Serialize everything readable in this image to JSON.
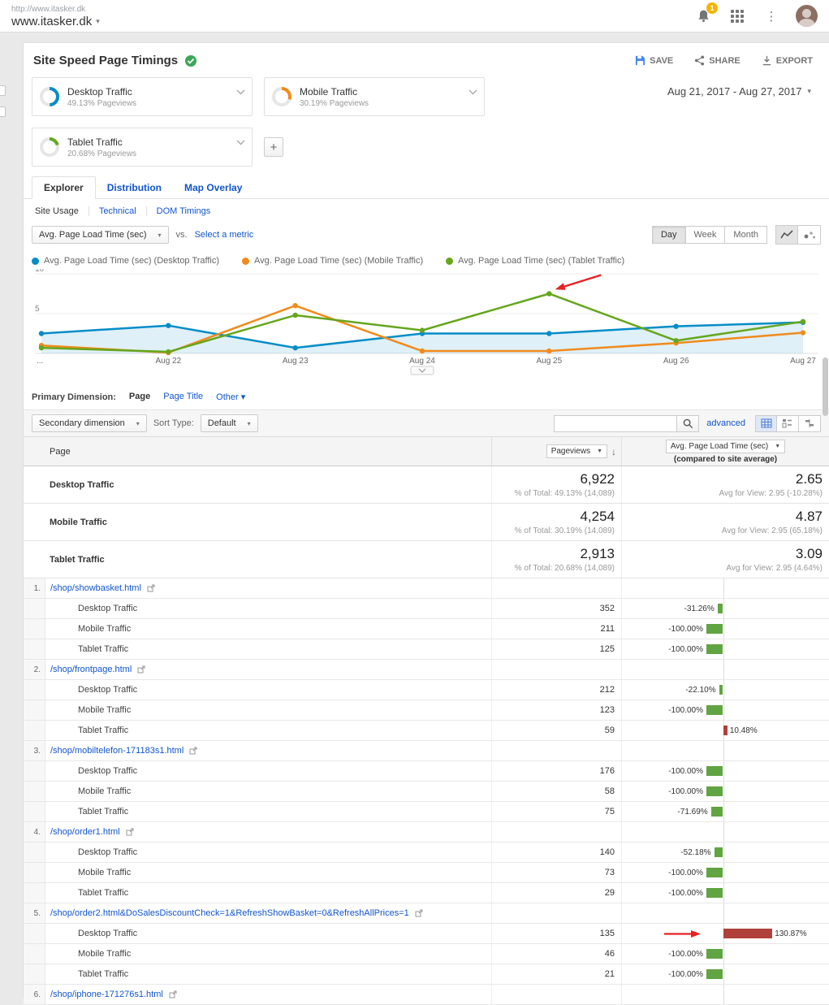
{
  "topbar": {
    "url": "http://www.itasker.dk",
    "account_name": "www.itasker.dk",
    "notification_count": "1"
  },
  "report": {
    "title": "Site Speed Page Timings",
    "save_label": "SAVE",
    "share_label": "SHARE",
    "export_label": "EXPORT",
    "date_range": "Aug 21, 2017 - Aug 27, 2017"
  },
  "segments": {
    "cards": [
      {
        "name": "Desktop Traffic",
        "subtitle": "49.13% Pageviews",
        "pct": 49.13,
        "color": "#058dc7"
      },
      {
        "name": "Mobile Traffic",
        "subtitle": "30.19% Pageviews",
        "pct": 30.19,
        "color": "#f08b1d"
      },
      {
        "name": "Tablet Traffic",
        "subtitle": "20.68% Pageviews",
        "pct": 20.68,
        "color": "#65a61d"
      }
    ],
    "add_label": "+"
  },
  "tabs": {
    "items": [
      {
        "label": "Explorer",
        "active": true
      },
      {
        "label": "Distribution",
        "active": false
      },
      {
        "label": "Map Overlay",
        "active": false
      }
    ],
    "subitems": [
      {
        "label": "Site Usage",
        "active": true
      },
      {
        "label": "Technical",
        "active": false
      },
      {
        "label": "DOM Timings",
        "active": false
      }
    ]
  },
  "metric_bar": {
    "metric_selector": "Avg. Page Load Time (sec)",
    "vs_label": "vs.",
    "select_metric": "Select a metric",
    "granularity": [
      {
        "label": "Day",
        "active": true
      },
      {
        "label": "Week",
        "active": false
      },
      {
        "label": "Month",
        "active": false
      }
    ]
  },
  "chart_data": {
    "type": "line",
    "x": [
      "...",
      "Aug 22",
      "Aug 23",
      "Aug 24",
      "Aug 25",
      "Aug 26",
      "Aug 27"
    ],
    "ylabel": "Avg. Page Load Time (sec)",
    "ylim": [
      0,
      10
    ],
    "yticks": [
      5,
      10
    ],
    "grid": true,
    "legend_position": "top",
    "series": [
      {
        "name": "Avg. Page Load Time (sec) (Desktop Traffic)",
        "color": "#058dc7",
        "area": true,
        "values": [
          2.5,
          3.5,
          0.7,
          2.5,
          2.5,
          3.4,
          3.9
        ]
      },
      {
        "name": "Avg. Page Load Time (sec) (Mobile Traffic)",
        "color": "#f08b1d",
        "area": false,
        "values": [
          1.0,
          0.1,
          6.0,
          0.3,
          0.3,
          1.3,
          2.6
        ]
      },
      {
        "name": "Avg. Page Load Time (sec) (Tablet Traffic)",
        "color": "#65a61d",
        "area": false,
        "values": [
          0.7,
          0.2,
          4.8,
          2.9,
          7.5,
          1.6,
          4.0
        ]
      }
    ],
    "annotation": "red arrow pointing at Tablet Traffic peak on Aug 25"
  },
  "dimension_bar": {
    "label": "Primary Dimension:",
    "options": [
      {
        "label": "Page",
        "active": true,
        "caret": false
      },
      {
        "label": "Page Title",
        "active": false,
        "caret": false
      },
      {
        "label": "Other",
        "active": false,
        "caret": true
      }
    ]
  },
  "toolbar": {
    "secondary_dimension": "Secondary dimension",
    "sort_type_label": "Sort Type:",
    "sort_type_value": "Default",
    "advanced_label": "advanced"
  },
  "table": {
    "headers": {
      "page": "Page",
      "pageviews": "Pageviews",
      "metric": "Avg. Page Load Time (sec)",
      "metric_sub": "(compared to site average)"
    },
    "bar_colors": {
      "negative": "#61a442",
      "positive": "#b0413a"
    },
    "summary_rows": [
      {
        "name": "Desktop Traffic",
        "pageviews": "6,922",
        "pageviews_sub": "% of Total: 49.13% (14,089)",
        "value": "2.65",
        "value_sub": "Avg for View: 2.95 (-10.28%)"
      },
      {
        "name": "Mobile Traffic",
        "pageviews": "4,254",
        "pageviews_sub": "% of Total: 30.19% (14,089)",
        "value": "4.87",
        "value_sub": "Avg for View: 2.95 (65.18%)"
      },
      {
        "name": "Tablet Traffic",
        "pageviews": "2,913",
        "pageviews_sub": "% of Total: 20.68% (14,089)",
        "value": "3.09",
        "value_sub": "Avg for View: 2.95 (4.64%)"
      }
    ],
    "rows": [
      {
        "num": "1.",
        "url": "/shop/showbasket.html",
        "subs": [
          {
            "name": "Desktop Traffic",
            "pageviews": "352",
            "pct": -31.26,
            "pct_label": "-31.26%"
          },
          {
            "name": "Mobile Traffic",
            "pageviews": "211",
            "pct": -100,
            "pct_label": "-100.00%"
          },
          {
            "name": "Tablet Traffic",
            "pageviews": "125",
            "pct": -100,
            "pct_label": "-100.00%"
          }
        ]
      },
      {
        "num": "2.",
        "url": "/shop/frontpage.html",
        "subs": [
          {
            "name": "Desktop Traffic",
            "pageviews": "212",
            "pct": -22.1,
            "pct_label": "-22.10%"
          },
          {
            "name": "Mobile Traffic",
            "pageviews": "123",
            "pct": -100,
            "pct_label": "-100.00%"
          },
          {
            "name": "Tablet Traffic",
            "pageviews": "59",
            "pct": 10.48,
            "pct_label": "10.48%"
          }
        ]
      },
      {
        "num": "3.",
        "url": "/shop/mobiltelefon-171183s1.html",
        "subs": [
          {
            "name": "Desktop Traffic",
            "pageviews": "176",
            "pct": -100,
            "pct_label": "-100.00%"
          },
          {
            "name": "Mobile Traffic",
            "pageviews": "58",
            "pct": -100,
            "pct_label": "-100.00%"
          },
          {
            "name": "Tablet Traffic",
            "pageviews": "75",
            "pct": -71.69,
            "pct_label": "-71.69%"
          }
        ]
      },
      {
        "num": "4.",
        "url": "/shop/order1.html",
        "subs": [
          {
            "name": "Desktop Traffic",
            "pageviews": "140",
            "pct": -52.18,
            "pct_label": "-52.18%"
          },
          {
            "name": "Mobile Traffic",
            "pageviews": "73",
            "pct": -100,
            "pct_label": "-100.00%"
          },
          {
            "name": "Tablet Traffic",
            "pageviews": "29",
            "pct": -100,
            "pct_label": "-100.00%"
          }
        ]
      },
      {
        "num": "5.",
        "url": "/shop/order2.html&DoSalesDiscountCheck=1&RefreshShowBasket=0&RefreshAllPrices=1",
        "subs": [
          {
            "name": "Desktop Traffic",
            "pageviews": "135",
            "pct": 130.87,
            "pct_label": "130.87%",
            "arrow": true
          },
          {
            "name": "Mobile Traffic",
            "pageviews": "46",
            "pct": -100,
            "pct_label": "-100.00%"
          },
          {
            "name": "Tablet Traffic",
            "pageviews": "21",
            "pct": -100,
            "pct_label": "-100.00%"
          }
        ]
      },
      {
        "num": "6.",
        "url": "/shop/iphone-171276s1.html",
        "subs": []
      }
    ]
  }
}
